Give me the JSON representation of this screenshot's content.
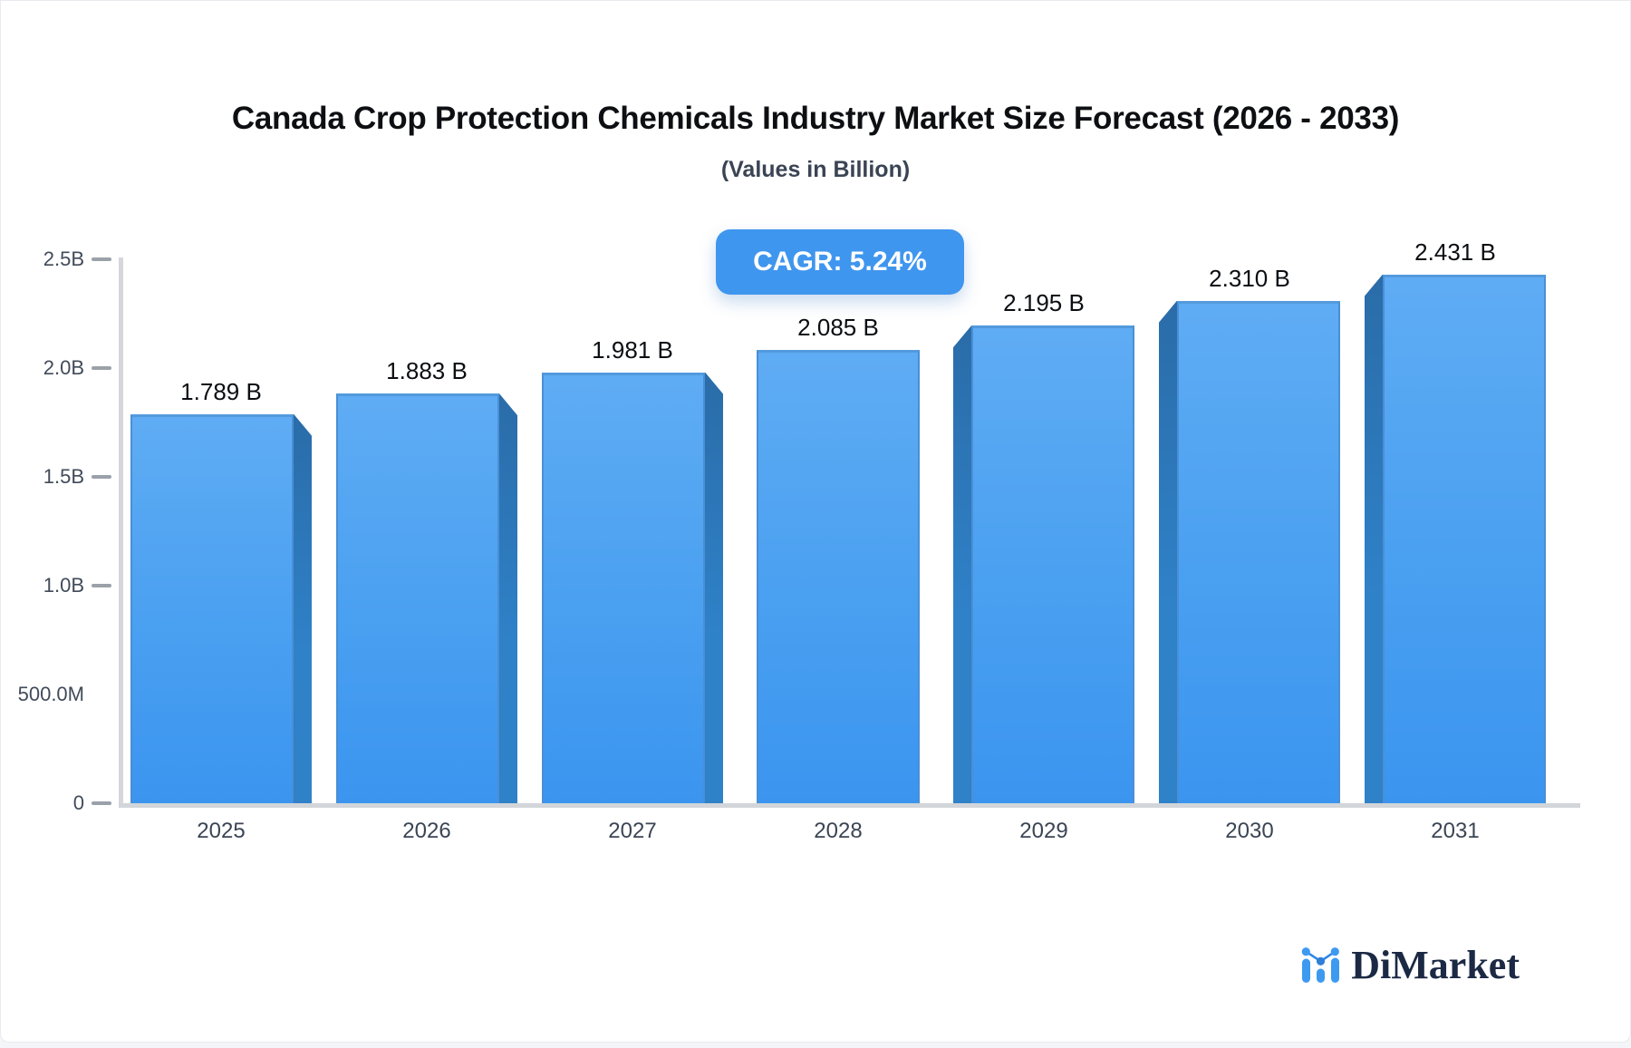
{
  "title": "Canada Crop Protection Chemicals Industry Market Size Forecast (2026 - 2033)",
  "subtitle": "(Values in Billion)",
  "badge": {
    "label": "CAGR: 5.24%",
    "color": "#3f96ee"
  },
  "brand": {
    "name": "DiMarket",
    "icon": "mini-bar-chart-logo",
    "navy": "#1b2944",
    "blue": "#3d9af0"
  },
  "colors": {
    "bar_top": "#5facf4",
    "bar_bottom": "#3b95ef",
    "bar_border": "#4a8fd6",
    "bar_side_shade": "#2c6fae",
    "axis_line": "#d5d7db",
    "axis_text": "#414b59"
  },
  "chart_data": {
    "type": "bar",
    "title": "Canada Crop Protection Chemicals Industry Market Size Forecast (2026 - 2033)",
    "subtitle": "(Values in Billion)",
    "annotation": "CAGR: 5.24%",
    "categories": [
      "2025",
      "2026",
      "2027",
      "2028",
      "2029",
      "2030",
      "2031"
    ],
    "values": [
      1.789,
      1.883,
      1.981,
      2.085,
      2.195,
      2.31,
      2.431
    ],
    "value_labels": [
      "1.789 B",
      "1.883 B",
      "1.981 B",
      "2.085 B",
      "2.195 B",
      "2.310 B",
      "2.431 B"
    ],
    "unit": "Billion",
    "ylim": [
      0,
      2.5
    ],
    "y_ticks": [
      {
        "value": 2.5,
        "label": "2.5B",
        "dash": true
      },
      {
        "value": 2.0,
        "label": "2.0B",
        "dash": true
      },
      {
        "value": 1.5,
        "label": "1.5B",
        "dash": true
      },
      {
        "value": 1.0,
        "label": "1.0B",
        "dash": true
      },
      {
        "value": 0.5,
        "label": "500.0M",
        "dash": false
      },
      {
        "value": 0,
        "label": "0",
        "dash": true
      }
    ],
    "grid": false,
    "legend": false,
    "style": "3d-beveled-bars"
  }
}
